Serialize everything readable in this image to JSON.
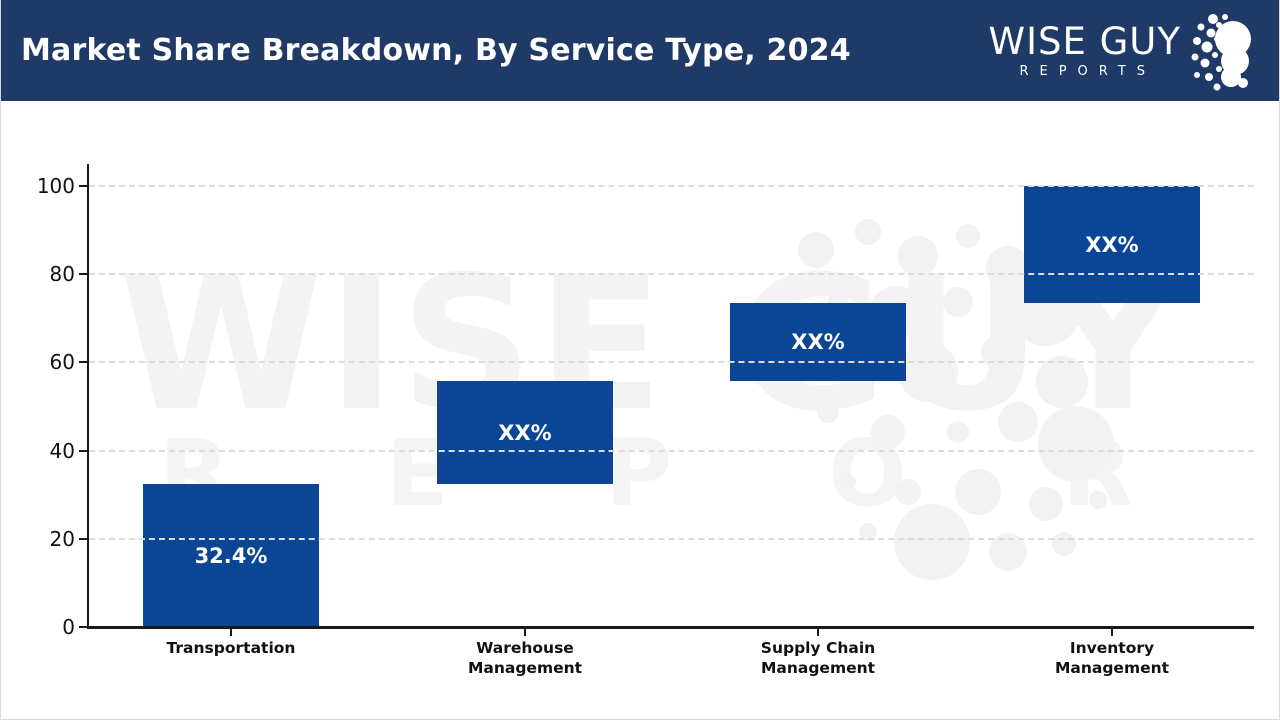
{
  "page": {
    "background": "#ffffff",
    "border_color": "#d8d8d8"
  },
  "header": {
    "background": "#203A68",
    "title": "Market Share Breakdown, By Service Type, 2024",
    "logo": {
      "wordmark": "WISE GUY",
      "subtext": "REPORTS",
      "icon": "dotted-face-profile"
    }
  },
  "watermark": {
    "wordmark": "WISE GUY",
    "subtext": "R E P O R T S",
    "icon": "dotted-face-profile",
    "color": "#f3f3f3"
  },
  "chart_data": {
    "type": "bar",
    "variant": "waterfall",
    "title": "Market Share Breakdown, By Service Type, 2024",
    "xlabel": "",
    "ylabel": "",
    "ylim": [
      0,
      105
    ],
    "yticks": [
      0,
      20,
      40,
      60,
      80,
      100
    ],
    "grid": {
      "axis": "y",
      "style": "dashed",
      "color": "#dcdcdc",
      "on": true
    },
    "legend": null,
    "bar_color": "#0B4696",
    "bar_label_color": "#ffffff",
    "axis_color": "#1a1a1a",
    "categories": [
      {
        "label": "Transportation",
        "lines": [
          "Transportation"
        ]
      },
      {
        "label": "Warehouse Management",
        "lines": [
          "Warehouse",
          "Management"
        ]
      },
      {
        "label": "Supply Chain Management",
        "lines": [
          "Supply Chain",
          "Management"
        ]
      },
      {
        "label": "Inventory Management",
        "lines": [
          "Inventory",
          "Management"
        ]
      }
    ],
    "segments": [
      {
        "category": "Transportation",
        "start": 0,
        "end": 32.4,
        "value": 32.4,
        "label": "32.4%"
      },
      {
        "category": "Warehouse Management",
        "start": 32.4,
        "end": 55.8,
        "value": 23.4,
        "label": "XX%"
      },
      {
        "category": "Supply Chain Management",
        "start": 55.8,
        "end": 73.4,
        "value": 17.6,
        "label": "XX%"
      },
      {
        "category": "Inventory Management",
        "start": 73.4,
        "end": 100,
        "value": 26.6,
        "label": "XX%"
      }
    ]
  }
}
